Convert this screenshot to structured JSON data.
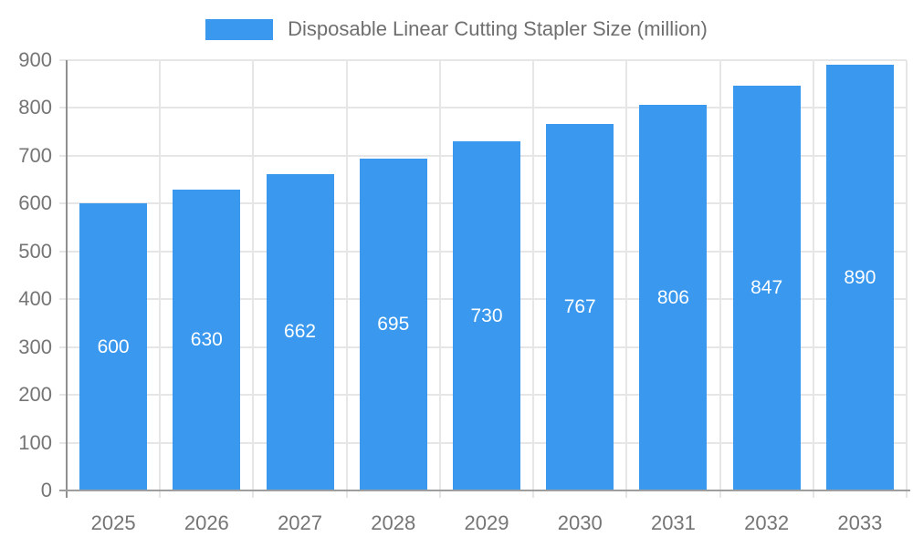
{
  "legend": {
    "label": "Disposable Linear Cutting Stapler Size (million)"
  },
  "chart_data": {
    "type": "bar",
    "title": "Disposable Linear Cutting Stapler Size (million)",
    "categories": [
      "2025",
      "2026",
      "2027",
      "2028",
      "2029",
      "2030",
      "2031",
      "2032",
      "2033"
    ],
    "values": [
      600,
      630,
      662,
      695,
      730,
      767,
      806,
      847,
      890
    ],
    "series": [
      {
        "name": "Disposable Linear Cutting Stapler Size (million)",
        "values": [
          600,
          630,
          662,
          695,
          730,
          767,
          806,
          847,
          890
        ]
      }
    ],
    "xlabel": "",
    "ylabel": "",
    "ylim": [
      0,
      900
    ],
    "ytick_interval": 100,
    "yticks": [
      0,
      100,
      200,
      300,
      400,
      500,
      600,
      700,
      800,
      900
    ],
    "grid": "horizontal gridlines every 100 and vertical gridlines at category boundaries",
    "legend_position": "top-center",
    "value_labels": "white, centered vertically inside each bar"
  },
  "colors": {
    "bar": "#3A99EE",
    "grid": "#e6e6e6",
    "axis": "#999999",
    "tick_label": "#757575",
    "legend_text": "#6f6f6f",
    "value_label": "#ffffff",
    "background": "#ffffff"
  }
}
